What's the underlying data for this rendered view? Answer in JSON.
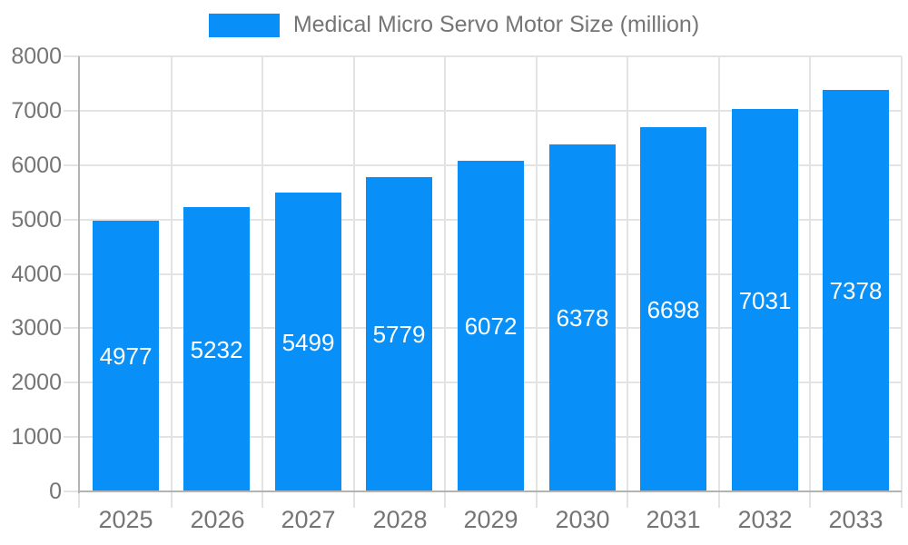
{
  "legend": {
    "label": "Medical Micro Servo Motor Size (million)"
  },
  "chart_data": {
    "type": "bar",
    "title": "Medical Micro Servo Motor Size (million)",
    "categories": [
      "2025",
      "2026",
      "2027",
      "2028",
      "2029",
      "2030",
      "2031",
      "2032",
      "2033"
    ],
    "values": [
      4977,
      5232,
      5499,
      5779,
      6072,
      6378,
      6698,
      7031,
      7378
    ],
    "xlabel": "",
    "ylabel": "",
    "ylim": [
      0,
      8000
    ],
    "yticks": [
      0,
      1000,
      2000,
      3000,
      4000,
      5000,
      6000,
      7000,
      8000
    ],
    "grid": true,
    "legend_position": "top",
    "value_label_position": "inside-center",
    "colors": {
      "bar": "#0890f8",
      "value_label": "#ffffff",
      "axis_line": "#b3b3b3",
      "gridline": "#e3e3e3",
      "tick_label": "#757575",
      "background": "#ffffff"
    }
  }
}
